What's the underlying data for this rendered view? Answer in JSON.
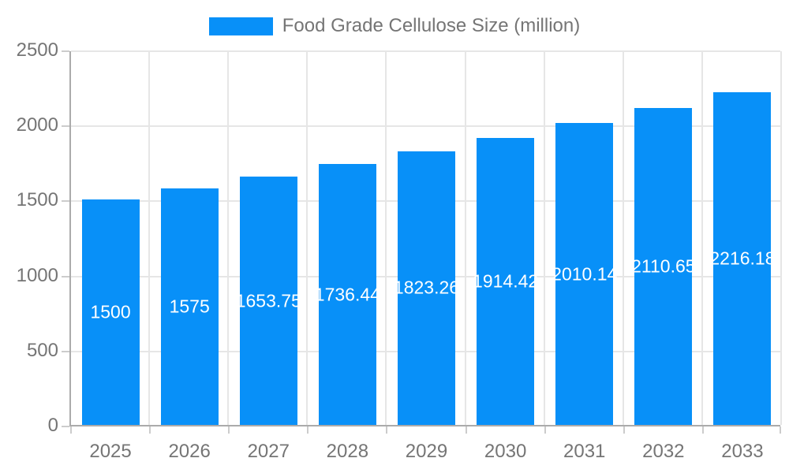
{
  "legend": {
    "label": "Food Grade Cellulose Size (million)",
    "swatch_color": "#0890F8"
  },
  "chart_data": {
    "type": "bar",
    "title": "Food Grade Cellulose Size (million)",
    "categories": [
      "2025",
      "2026",
      "2027",
      "2028",
      "2029",
      "2030",
      "2031",
      "2032",
      "2033"
    ],
    "values": [
      1500,
      1575,
      1653.75,
      1736.44,
      1823.26,
      1914.42,
      2010.14,
      2110.65,
      2216.18
    ],
    "value_labels": [
      "1500",
      "1575",
      "1653.75",
      "1736.44",
      "1823.26",
      "1914.42",
      "2010.14",
      "2110.65",
      "2216.18"
    ],
    "xlabel": "",
    "ylabel": "",
    "ylim": [
      0,
      2500
    ],
    "yticks": [
      0,
      500,
      1000,
      1500,
      2000,
      2500
    ],
    "ytick_labels": [
      "0",
      "500",
      "1000",
      "1500",
      "2000",
      "2500"
    ],
    "grid": true,
    "legend_position": "top",
    "bar_color": "#0890F8",
    "value_label_color": "#ffffff",
    "axis_text_color": "#757575",
    "gridline_color": "#e6e6e6",
    "axis_line_color": "#ababab"
  }
}
